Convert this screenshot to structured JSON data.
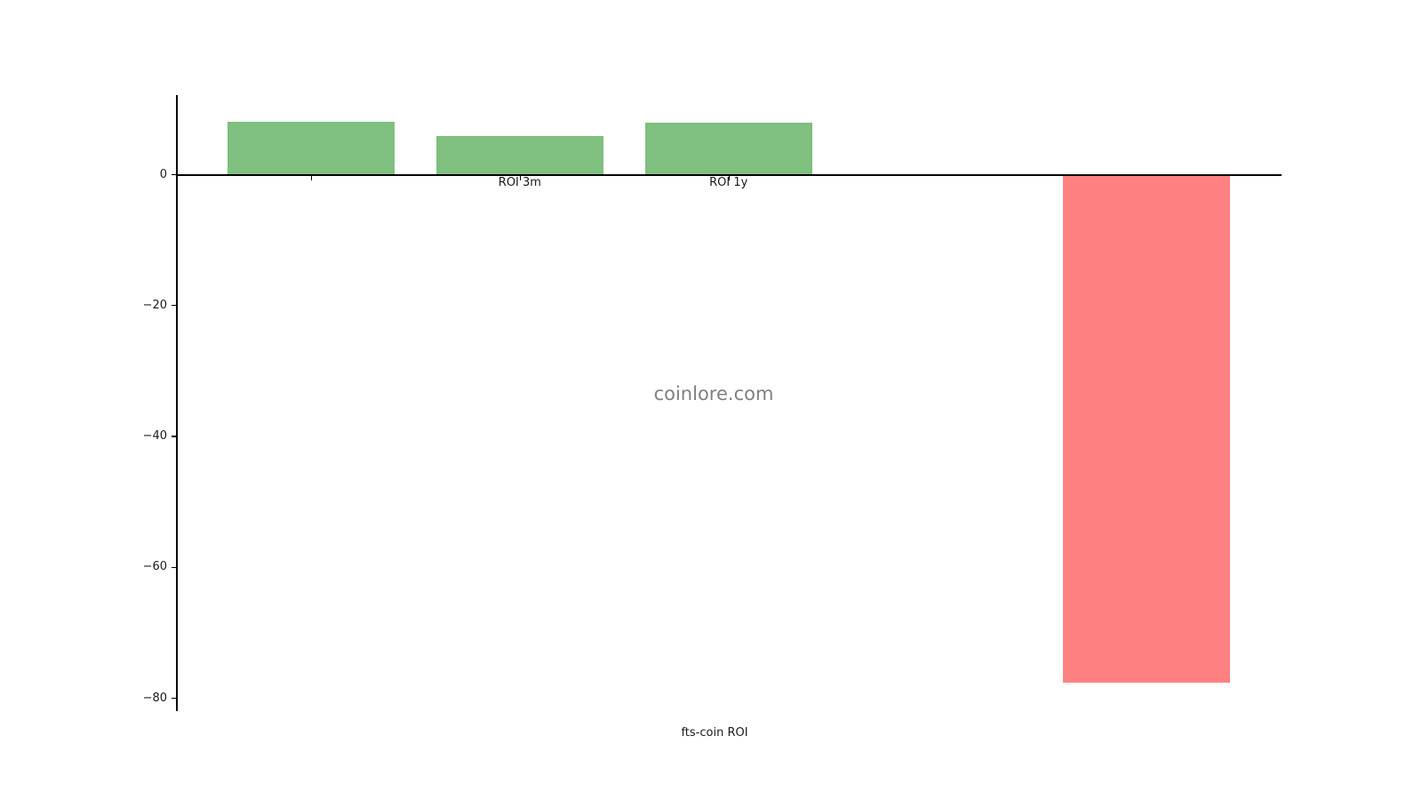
{
  "chart_data": {
    "type": "bar",
    "title": "fts-coin ROI",
    "watermark": "coinlore.com",
    "categories": [
      "",
      "ROI 3m",
      "ROI 1y",
      "",
      ""
    ],
    "values": [
      8.1,
      5.9,
      7.9,
      null,
      -77.6
    ],
    "bar_colors": [
      "#7fbf7f",
      "#7fbf7f",
      "#7fbf7f",
      null,
      "#ff8080"
    ],
    "show_x_ticks": [
      true,
      true,
      true,
      false,
      false
    ],
    "yticks": [
      0,
      -20,
      -40,
      -60,
      -80
    ],
    "ytick_labels": [
      "0",
      "−20",
      "−40",
      "−60",
      "−80"
    ],
    "ylim": [
      -82,
      12
    ],
    "grid": false,
    "legend": "none",
    "positive_color": "#7fbf7f",
    "negative_color": "#ff8080",
    "axis_color": "#000000",
    "watermark_color": "#808080"
  }
}
